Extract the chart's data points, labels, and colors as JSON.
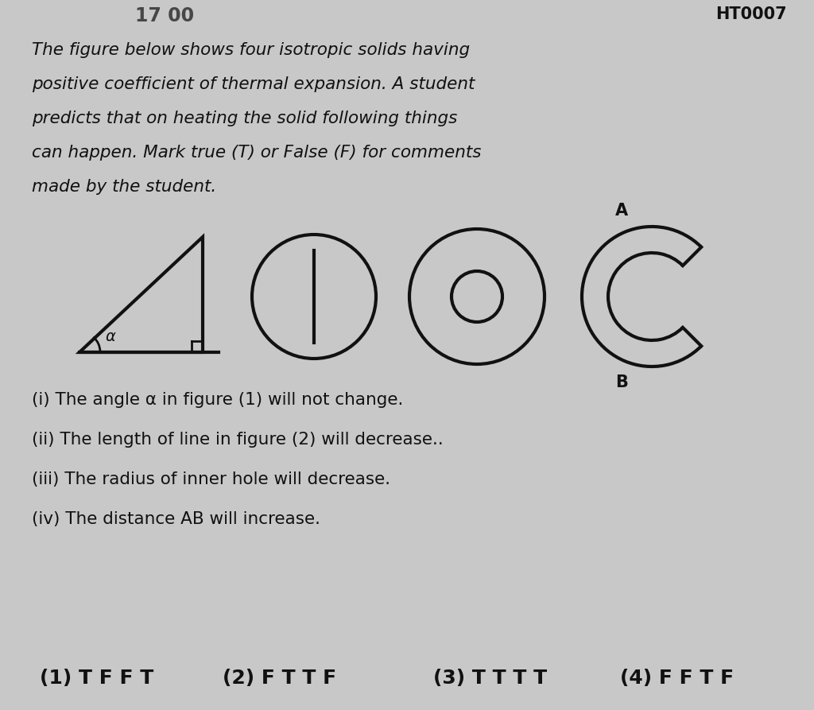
{
  "bg_color": "#c8c8c8",
  "title_text": "HT0007",
  "paragraph_lines": [
    "The figure below shows four isotropic solids having",
    "positive coefficient of thermal expansion. A student",
    "predicts that on heating the solid following things",
    "can happen. Mark true (T) or False (F) for comments",
    "made by the student."
  ],
  "items": [
    "(i) The angle α in figure (1) will not change.",
    "(ii) The length of line in figure (2) will decrease..",
    "(iii) The radius of inner hole will decrease.",
    "(iv) The distance AB will increase."
  ],
  "answer_parts": [
    "(1) TFFT",
    "(2) FTTF",
    "(3) TTTT",
    "(4) FFTF"
  ],
  "text_color": "#111111",
  "fig_width": 10.24,
  "fig_height": 8.93
}
